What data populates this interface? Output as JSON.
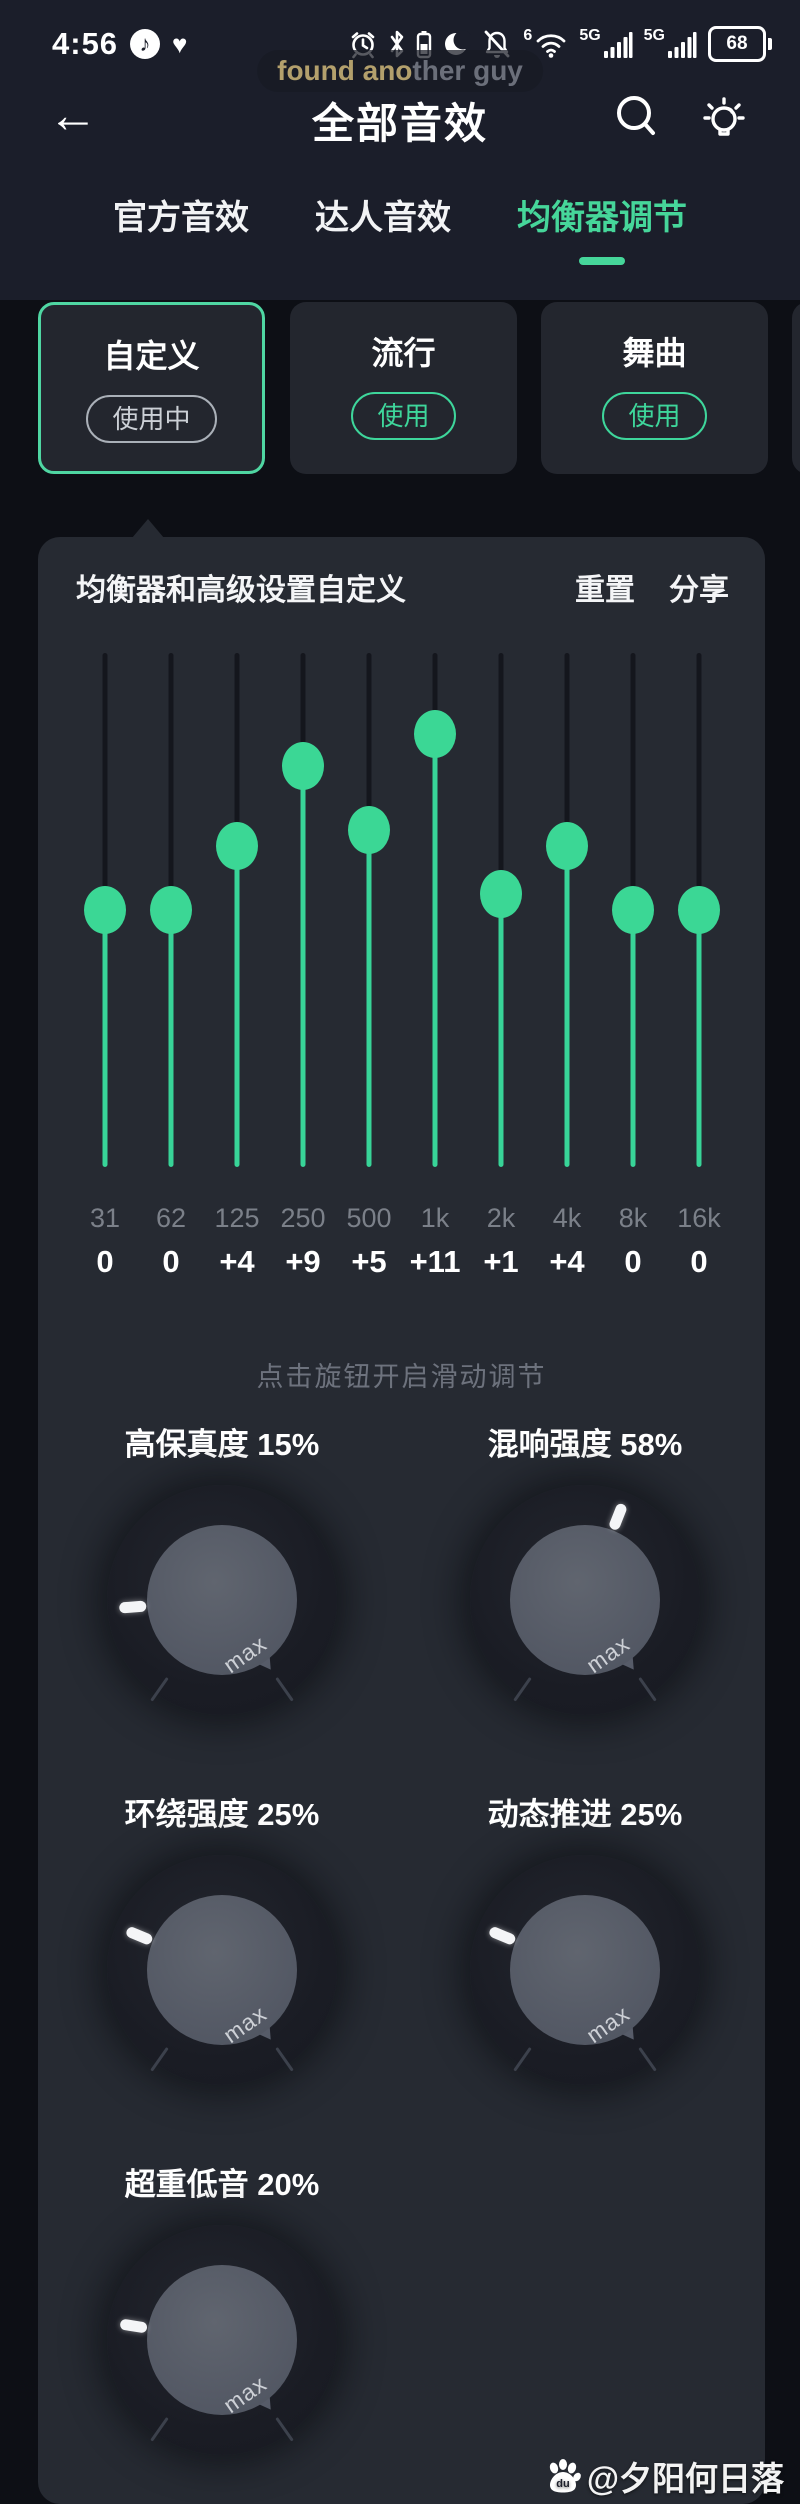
{
  "status_bar": {
    "time": "4:56",
    "music_note": "♪",
    "heart": "♥",
    "wifi_gen": "6",
    "sim1": "5G",
    "sim2": "5G",
    "battery": "68"
  },
  "lyric": {
    "sung": "found ano",
    "unsung": "ther guy"
  },
  "header": {
    "title": "全部音效",
    "back": "←"
  },
  "tabs": [
    {
      "label": "官方音效",
      "active": false
    },
    {
      "label": "达人音效",
      "active": false
    },
    {
      "label": "均衡器调节",
      "active": true
    }
  ],
  "presets": [
    {
      "name": "自定义",
      "action": "使用中",
      "active": true
    },
    {
      "name": "流行",
      "action": "使用",
      "active": false
    },
    {
      "name": "舞曲",
      "action": "使用",
      "active": false
    }
  ],
  "panel": {
    "title": "均衡器和高级设置自定义",
    "reset": "重置",
    "share": "分享",
    "hint": "点击旋钮开启滑动调节"
  },
  "equalizer": {
    "bands": [
      {
        "freq": "31",
        "gain": 0,
        "display": "0"
      },
      {
        "freq": "62",
        "gain": 0,
        "display": "0"
      },
      {
        "freq": "125",
        "gain": 4,
        "display": "+4"
      },
      {
        "freq": "250",
        "gain": 9,
        "display": "+9"
      },
      {
        "freq": "500",
        "gain": 5,
        "display": "+5"
      },
      {
        "freq": "1k",
        "gain": 11,
        "display": "+11"
      },
      {
        "freq": "2k",
        "gain": 1,
        "display": "+1"
      },
      {
        "freq": "4k",
        "gain": 4,
        "display": "+4"
      },
      {
        "freq": "8k",
        "gain": 0,
        "display": "0"
      },
      {
        "freq": "16k",
        "gain": 0,
        "display": "0"
      }
    ]
  },
  "knobs": [
    {
      "label": "高保真度 15%",
      "pct": 15,
      "max_label": "max"
    },
    {
      "label": "混响强度 58%",
      "pct": 58,
      "max_label": "max"
    },
    {
      "label": "环绕强度 25%",
      "pct": 25,
      "max_label": "max"
    },
    {
      "label": "动态推进 25%",
      "pct": 25,
      "max_label": "max"
    },
    {
      "label": "超重低音 20%",
      "pct": 20,
      "max_label": "max"
    }
  ],
  "watermark": {
    "handle": "@夕阳何日落",
    "logo_text": "du"
  },
  "colors": {
    "accent_green": "#3ed69b",
    "panel_bg": "#262a32",
    "card_bg": "#23262e",
    "top_bg": "#1b1e2a",
    "page_bg": "#0d0f15",
    "muted_text": "#7b8089"
  }
}
